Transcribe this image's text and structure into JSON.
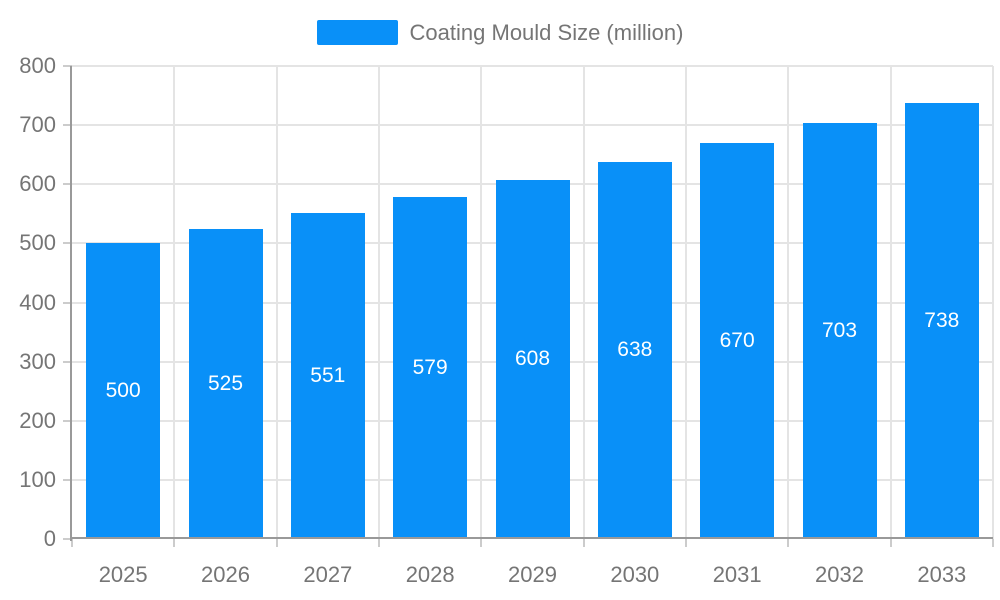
{
  "legend": {
    "label": "Coating Mould Size (million)"
  },
  "chart_data": {
    "type": "bar",
    "title": "",
    "categories": [
      "2025",
      "2026",
      "2027",
      "2028",
      "2029",
      "2030",
      "2031",
      "2032",
      "2033"
    ],
    "series": [
      {
        "name": "Coating Mould Size (million)",
        "values": [
          500,
          525,
          551,
          579,
          608,
          638,
          670,
          703,
          738
        ]
      }
    ],
    "xlabel": "",
    "ylabel": "",
    "ylim": [
      0,
      800
    ],
    "yticks": [
      0,
      100,
      200,
      300,
      400,
      500,
      600,
      700,
      800
    ],
    "grid": true,
    "legend_position": "top-center",
    "value_labels": "inside-center",
    "colors": {
      "bar": "#0990f8",
      "value_label": "#ffffff",
      "axis_text": "#757575",
      "grid_line": "#e4e4e4",
      "axis_line": "#999999",
      "tick": "#cccccc",
      "background": "#ffffff"
    }
  }
}
